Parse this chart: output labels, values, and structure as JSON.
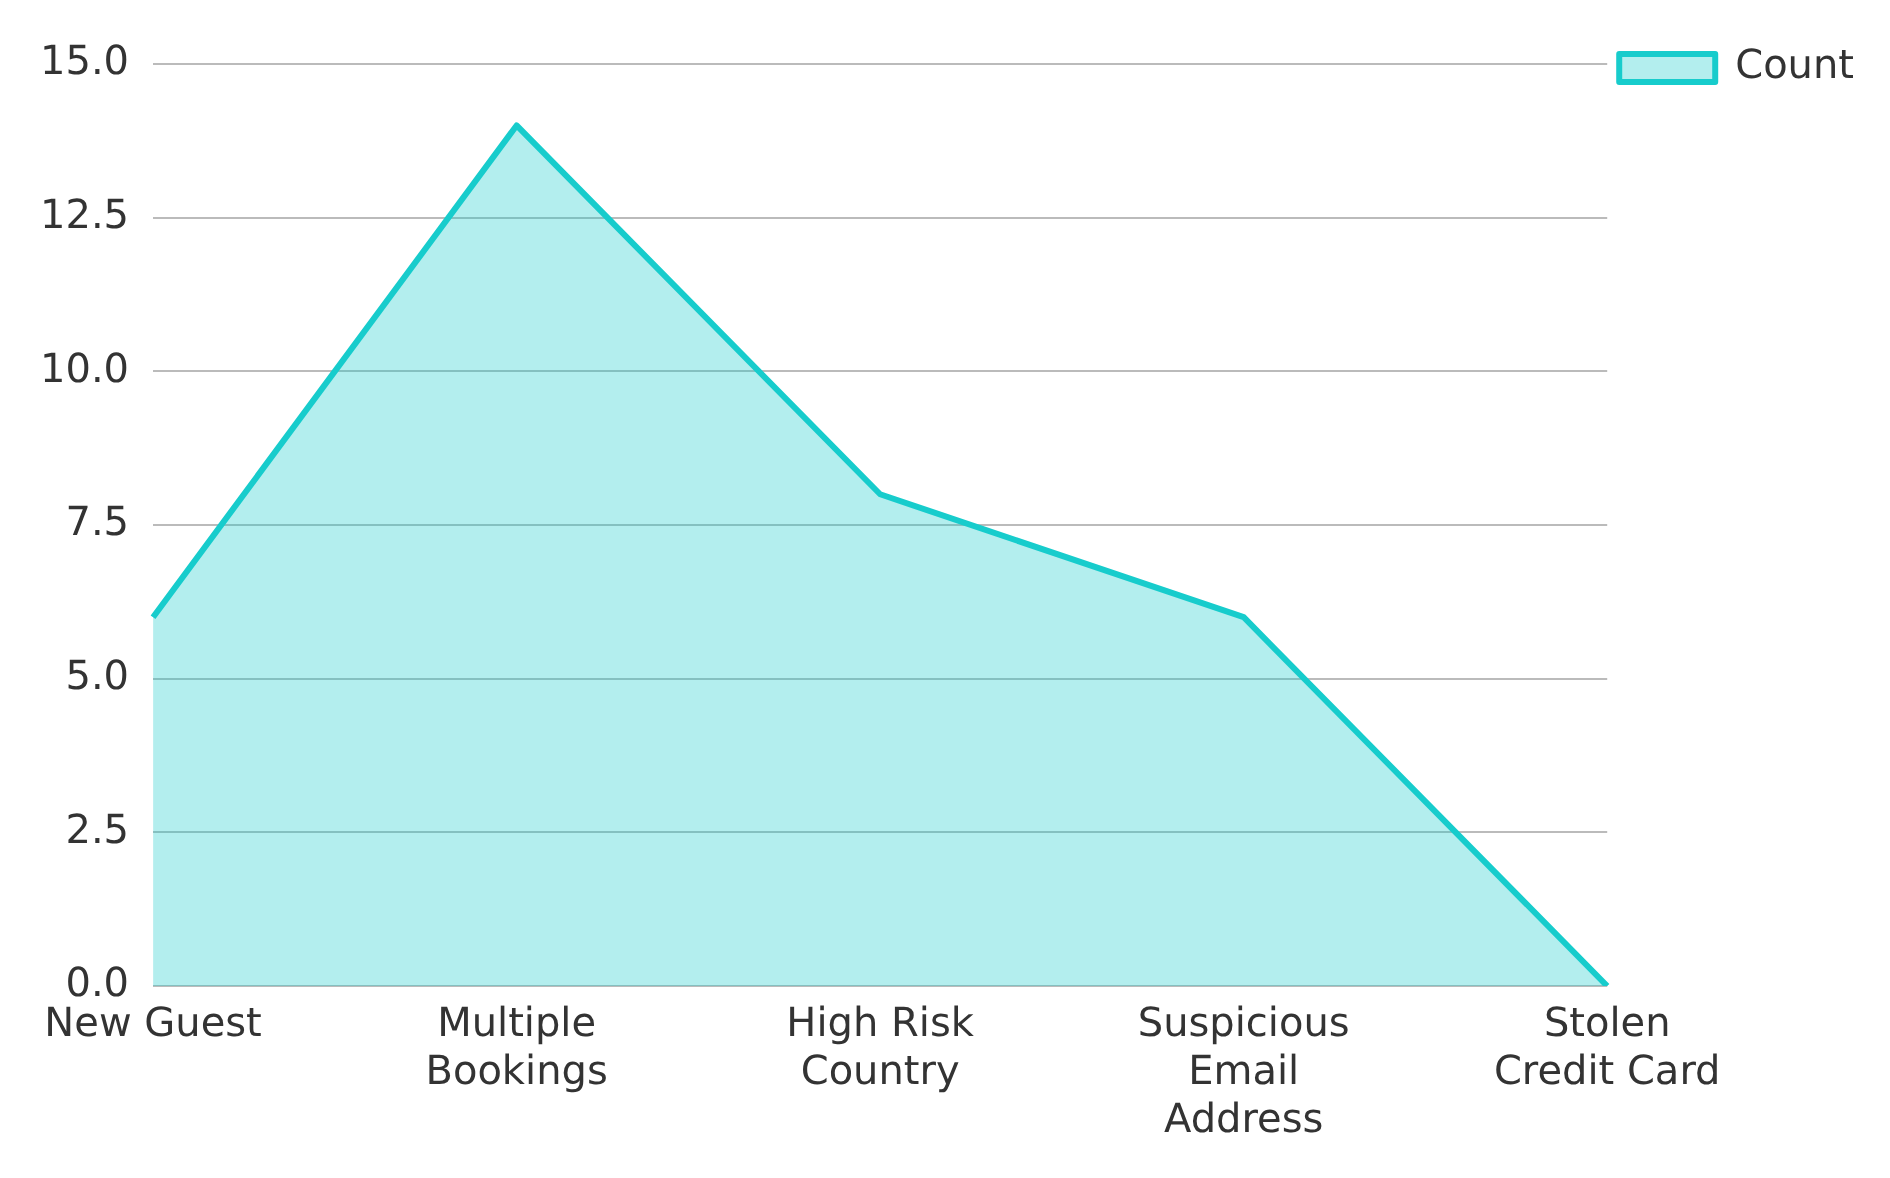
{
  "chart_data": {
    "type": "area",
    "categories": [
      "New Guest",
      "Multiple Bookings",
      "High Risk Country",
      "Suspicious Email Address",
      "Stolen Credit Card"
    ],
    "series": [
      {
        "name": "Count",
        "color": "#17cccc",
        "values": [
          6,
          14,
          8,
          6,
          0
        ]
      }
    ],
    "ylim": [
      0,
      15
    ],
    "yticks": [
      {
        "value": 0,
        "label": "0.0"
      },
      {
        "value": 2.5,
        "label": "2.5"
      },
      {
        "value": 5,
        "label": "5.0"
      },
      {
        "value": 7.5,
        "label": "7.5"
      },
      {
        "value": 10,
        "label": "10.0"
      },
      {
        "value": 12.5,
        "label": "12.5"
      },
      {
        "value": 15,
        "label": "15.0"
      }
    ],
    "grid": "y",
    "legend": "top right",
    "marker": "none"
  }
}
